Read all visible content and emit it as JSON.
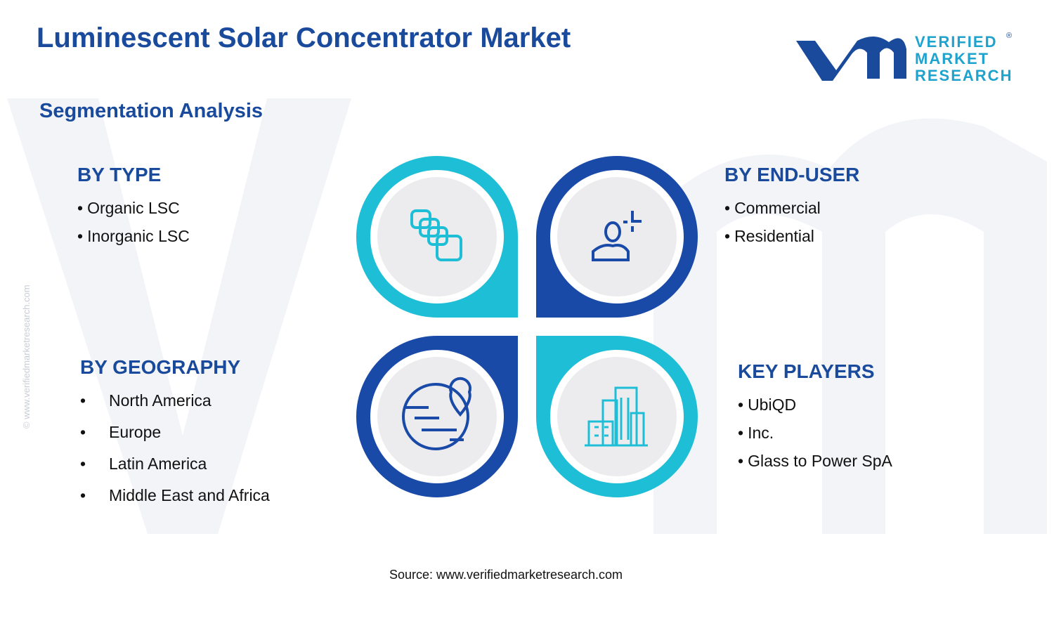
{
  "header": {
    "title": "Luminescent Solar Concentrator Market",
    "subtitle": "Segmentation Analysis"
  },
  "logo": {
    "lines": [
      "VERIFIED",
      "MARKET",
      "RESEARCH"
    ],
    "mark": "®"
  },
  "side_text": "© www.verifiedmarketresearch.com",
  "segments": [
    {
      "heading": "BY TYPE",
      "items": [
        "Organic LSC",
        "Inorganic LSC"
      ]
    },
    {
      "heading": "BY END-USER",
      "items": [
        "Commercial",
        "Residential"
      ]
    },
    {
      "heading": "BY GEOGRAPHY",
      "items": [
        "North America",
        "Europe",
        "Latin America",
        "Middle East and Africa"
      ]
    },
    {
      "heading": "KEY PLAYERS",
      "items": [
        "UbiQD",
        "Inc.",
        "Glass to Power SpA"
      ]
    }
  ],
  "source": "Source: www.verifiedmarketresearch.com"
}
